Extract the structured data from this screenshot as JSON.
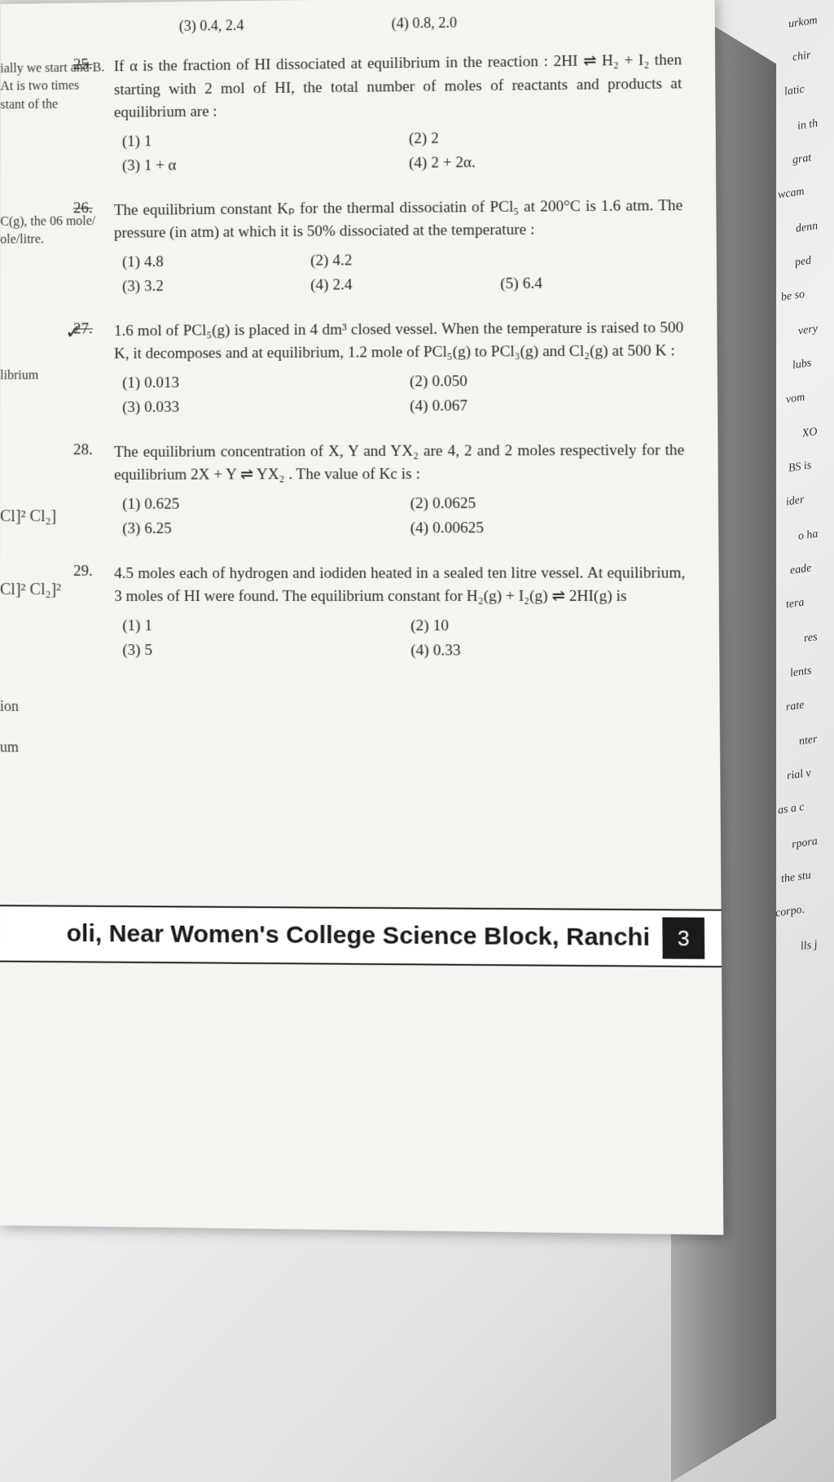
{
  "top_options": {
    "opt3": "(3) 0.4, 2.4",
    "opt4": "(4) 0.8, 2.0"
  },
  "margin": {
    "m1": "ially we start and B. At is two times stant of the",
    "m2": "C(g), the 06 mole/ ole/litre.",
    "m3": "librium",
    "m4": "Cl]²\nCl₂]",
    "m5": "Cl]²\nCl₂]²",
    "m6": "ion",
    "m7": "um"
  },
  "q25": {
    "num": "25.",
    "text": "If α is the fraction of HI dissociated at equilibrium in the reaction : 2HI ⇌ H₂ + I₂ then starting with 2 mol of HI, the total number of moles of reactants and products at equilibrium are :",
    "o1": "(1) 1",
    "o2": "(2) 2",
    "o3": "(3) 1 + α",
    "o4": "(4) 2 + 2α."
  },
  "q26": {
    "num": "26.",
    "text": "The equilibrium constant Kₚ for the thermal dissociatin of PCl₅ at 200°C is 1.6 atm. The pressure (in atm) at which it is 50% dissociated at the temperature :",
    "o1": "(1) 4.8",
    "o2": "(2) 4.2",
    "o3": "(3) 3.2",
    "o4": "(4) 2.4",
    "o5": "(5) 6.4"
  },
  "q27": {
    "num": "27.",
    "text": "1.6 mol of PCl₅(g) is placed in 4 dm³ closed vessel. When the temperature is raised to 500 K, it decomposes and at equilibrium, 1.2 mole of PCl₅(g) to PCl₃(g) and Cl₂(g) at 500 K :",
    "o1": "(1) 0.013",
    "o2": "(2) 0.050",
    "o3": "(3) 0.033",
    "o4": "(4) 0.067"
  },
  "q28": {
    "num": "28.",
    "text": "The equilibrium concentration of X, Y and YX₂ are 4, 2 and 2 moles respectively for the equilibrium 2X + Y ⇌ YX₂ . The value of Kc is :",
    "o1": "(1) 0.625",
    "o2": "(2) 0.0625",
    "o3": "(3) 6.25",
    "o4": "(4) 0.00625"
  },
  "q29": {
    "num": "29.",
    "text": "4.5 moles each of hydrogen and iodiden heated in a sealed ten litre vessel. At equilibrium, 3 moles of HI were found. The equilibrium constant for H₂(g) + I₂(g) ⇌ 2HI(g) is",
    "o1": "(1) 1",
    "o2": "(2) 10",
    "o3": "(3) 5",
    "o4": "(4) 0.33"
  },
  "footer": {
    "text": "oli, Near Women's College Science Block, Ranchi",
    "page": "3"
  },
  "spine_words": [
    "urkom",
    "chir",
    "latic",
    "in th",
    "grat",
    "wcam",
    "denn",
    "ped",
    "be so",
    "very",
    "lubs",
    "vom",
    "XO",
    "BS is",
    "ider",
    "o ha",
    "eade",
    "tera",
    "res",
    "lents",
    "rate",
    "nter",
    "rial v",
    "as a c",
    "rpora",
    "the stu",
    "corpo.",
    "lls j"
  ]
}
